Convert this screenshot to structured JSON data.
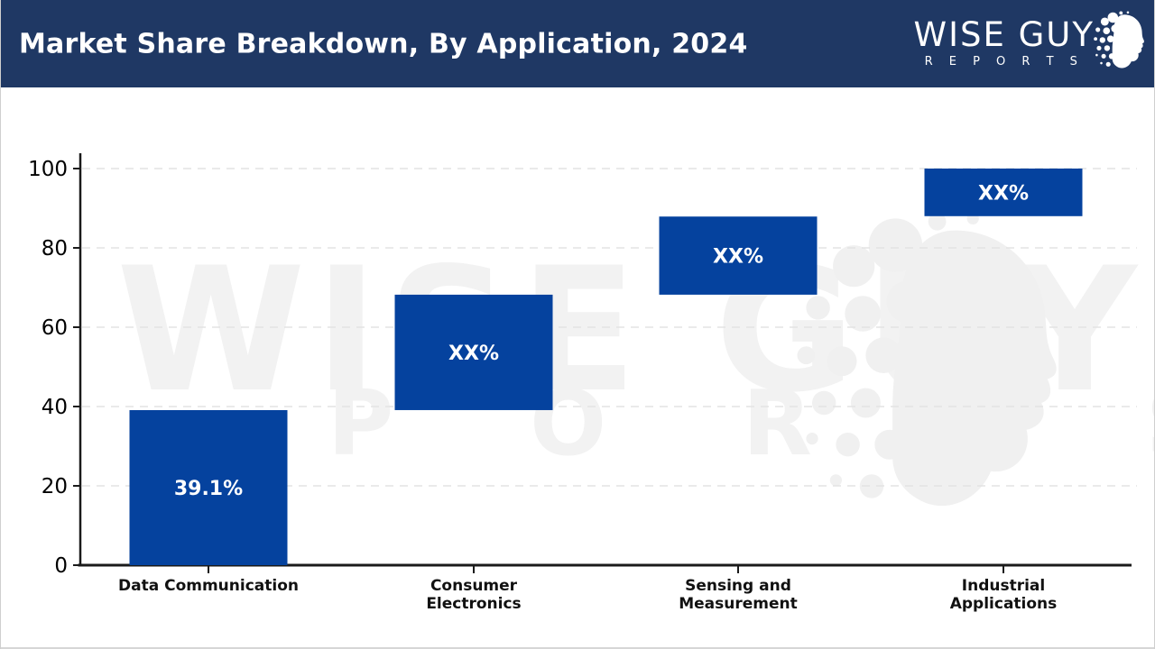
{
  "header": {
    "title": "Market Share Breakdown, By Application, 2024",
    "bg_color": "#1f3864",
    "logo": {
      "wordmark": "WISE GUY",
      "sub": "R E P O R T S",
      "icon": "dotted-head-profile-icon"
    }
  },
  "watermark": {
    "line1": "WISE GUY",
    "line2": "P O R T S",
    "icon": "dotted-head-profile-icon"
  },
  "chart_data": {
    "type": "bar",
    "subtype": "waterfall",
    "title": "Market Share Breakdown, By Application, 2024",
    "xlabel": "",
    "ylabel": "",
    "ylim": [
      0,
      105
    ],
    "yticks": [
      0,
      20,
      40,
      60,
      80,
      100
    ],
    "grid": "horizontal-dashed",
    "legend": "none",
    "bar_color": "#05429e",
    "bar_label_color": "#ffffff",
    "axis_color": "#1a1a1a",
    "gridline_color": "#e3e3e3",
    "categories": [
      [
        "Data Communication"
      ],
      [
        "Consumer",
        "Electronics"
      ],
      [
        "Sensing and",
        "Measurement"
      ],
      [
        "Industrial",
        "Applications"
      ]
    ],
    "series": [
      {
        "name": "Market Share",
        "segments": [
          {
            "category": "Data Communication",
            "start": 0,
            "end": 39.1,
            "label": "39.1%"
          },
          {
            "category": "Consumer Electronics",
            "start": 39.1,
            "end": 68.2,
            "label": "XX%"
          },
          {
            "category": "Sensing and Measurement",
            "start": 68.2,
            "end": 87.9,
            "label": "XX%"
          },
          {
            "category": "Industrial Applications",
            "start": 88.0,
            "end": 100,
            "label": "XX%"
          }
        ]
      }
    ]
  }
}
